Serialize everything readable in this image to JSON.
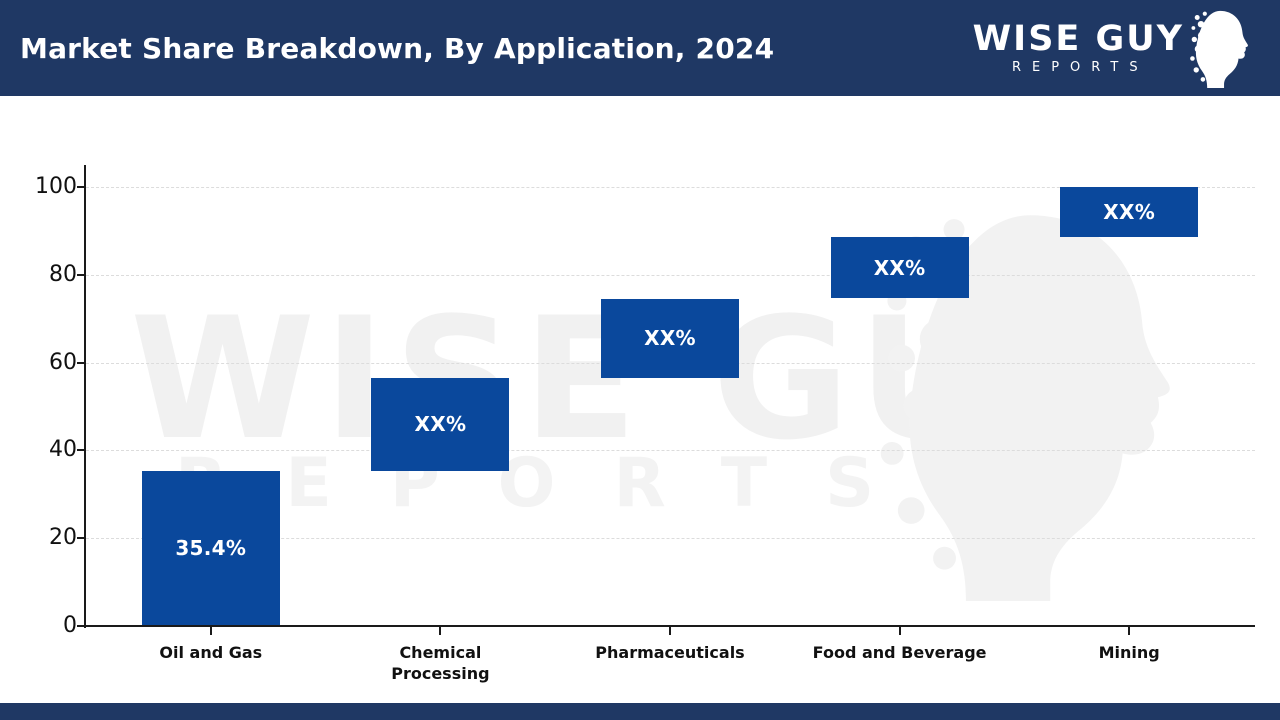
{
  "header": {
    "title": "Market Share Breakdown, By Application, 2024",
    "logo": {
      "line1": "WISE GUY",
      "line2": "REPORTS"
    },
    "bg_color": "#1f3864"
  },
  "watermark": {
    "line1": "WISE GUY",
    "line2": "REPORTS"
  },
  "chart_data": {
    "type": "bar",
    "subtype": "waterfall",
    "title": "Market Share Breakdown, By Application, 2024",
    "categories": [
      {
        "name": "Oil and Gas",
        "lines": [
          "Oil and Gas"
        ]
      },
      {
        "name": "Chemical Processing",
        "lines": [
          "Chemical",
          "Processing"
        ]
      },
      {
        "name": "Pharmaceuticals",
        "lines": [
          "Pharmaceuticals"
        ]
      },
      {
        "name": "Food and Beverage",
        "lines": [
          "Food and Beverage"
        ]
      },
      {
        "name": "Mining",
        "lines": [
          "Mining"
        ]
      }
    ],
    "segments": [
      {
        "category": "Oil and Gas",
        "start": 0,
        "end": 35.4,
        "label": "35.4%"
      },
      {
        "category": "Chemical Processing",
        "start": 35.4,
        "end": 56.6,
        "label": "XX%"
      },
      {
        "category": "Pharmaceuticals",
        "start": 56.6,
        "end": 74.4,
        "label": "XX%"
      },
      {
        "category": "Food and Beverage",
        "start": 74.7,
        "end": 88.5,
        "label": "XX%"
      },
      {
        "category": "Mining",
        "start": 88.7,
        "end": 100,
        "label": "XX%"
      }
    ],
    "yticks": [
      0,
      20,
      40,
      60,
      80,
      100
    ],
    "ylim": [
      0,
      105
    ],
    "grid": "dashed-horizontal",
    "legend": "none",
    "bar_color": "#0a489c",
    "bar_label_color": "#ffffff",
    "axis_color": "#1a1a1a",
    "grid_color": "#dcdcdc"
  },
  "footer": {
    "bg_color": "#1f3864"
  }
}
